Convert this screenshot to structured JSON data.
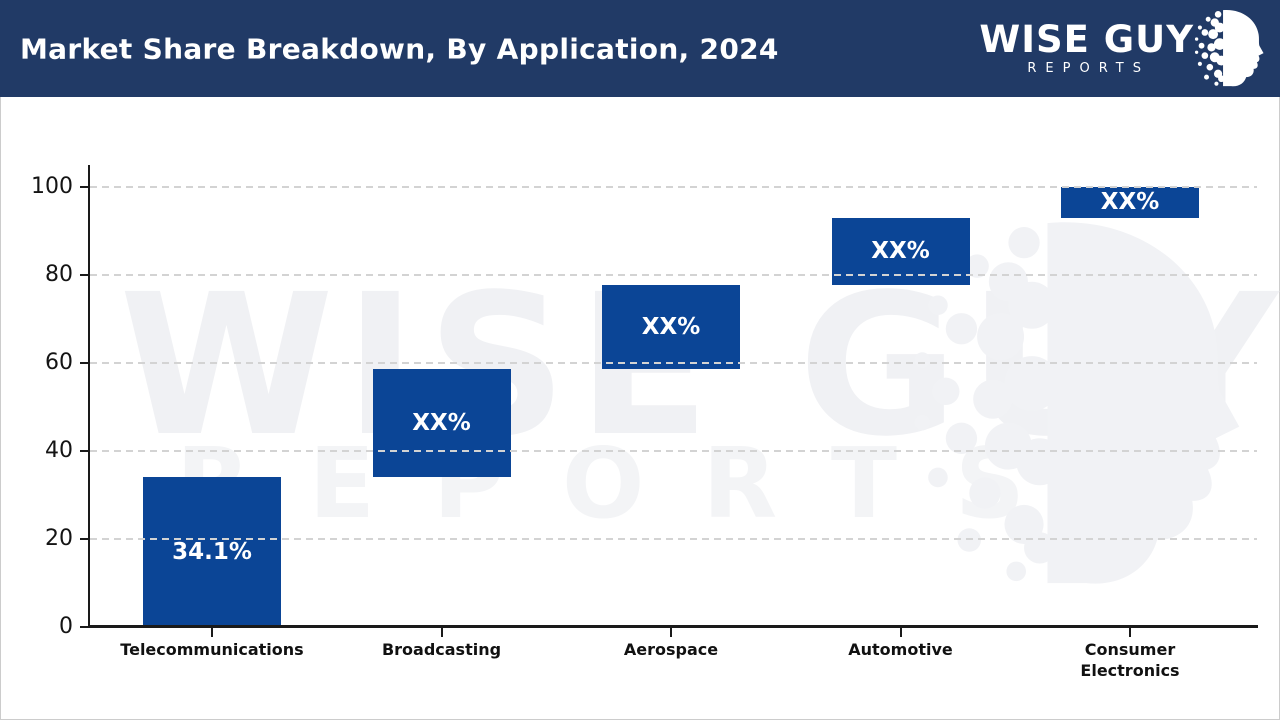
{
  "header": {
    "title": "Market Share Breakdown, By Application, 2024",
    "logo": {
      "line1": "WISE GUY",
      "line2": "REPORTS"
    }
  },
  "watermark": {
    "line1": "WISE GUY",
    "line2": "REPORTS"
  },
  "colors": {
    "header_bg": "#213a66",
    "bar": "#0b4596",
    "grid": "#d3d3d3",
    "axis": "#1a1a1a",
    "bar_label_text": "#ffffff"
  },
  "chart_data": {
    "type": "bar",
    "subtype": "waterfall",
    "title": "Market Share Breakdown, By Application, 2024",
    "xlabel": "",
    "ylabel": "",
    "categories": [
      "Telecommunications",
      "Broadcasting",
      "Aerospace",
      "Automotive",
      "Consumer Electronics"
    ],
    "segments": [
      {
        "category": "Telecommunications",
        "label": "34.1%",
        "start": 0,
        "end": 34.1,
        "value": 34.1
      },
      {
        "category": "Broadcasting",
        "label": "XX%",
        "start": 34.1,
        "end": 58.7,
        "value": 24.6
      },
      {
        "category": "Aerospace",
        "label": "XX%",
        "start": 58.7,
        "end": 77.7,
        "value": 19.0
      },
      {
        "category": "Automotive",
        "label": "XX%",
        "start": 77.7,
        "end": 93.0,
        "value": 15.3
      },
      {
        "category": "Consumer Electronics",
        "label": "XX%",
        "start": 93.0,
        "end": 100.0,
        "value": 7.0
      }
    ],
    "yticks": [
      0,
      20,
      40,
      60,
      80,
      100
    ],
    "ylim": [
      0,
      100
    ],
    "grid": "horizontal-dashed",
    "legend": "none"
  }
}
